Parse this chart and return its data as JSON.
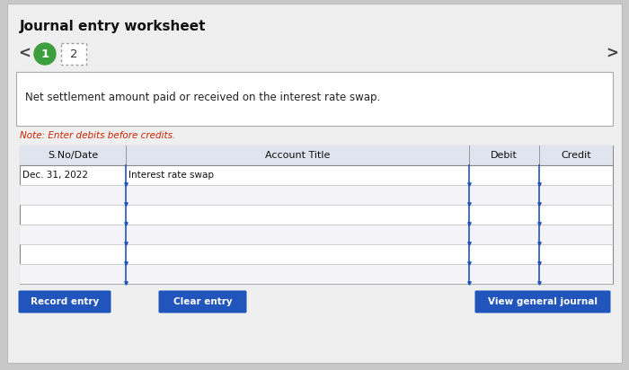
{
  "title": "Journal entry worksheet",
  "bg_color": "#c8c8c8",
  "card_color": "#efefef",
  "white": "#ffffff",
  "nav_left": "<",
  "nav_right": ">",
  "tab1_label": "1",
  "tab1_color": "#3d9e3d",
  "tab2_label": "2",
  "hint_text": "Net settlement amount paid or received on the interest rate swap.",
  "note_text": "Note: Enter debits before credits.",
  "note_color": "#cc2200",
  "col_headers": [
    "S.No/Date",
    "Account Title",
    "Debit",
    "Credit"
  ],
  "row1_date": "Dec. 31, 2022",
  "row1_account": "Interest rate swap",
  "num_rows": 6,
  "btn_color": "#2255bb",
  "btn_text_color": "#ffffff",
  "btn1_label": "Record entry",
  "btn2_label": "Clear entry",
  "btn3_label": "View general journal",
  "table_header_bg": "#e0e4ee",
  "table_line_color": "#2255bb",
  "border_color": "#bbbbbb",
  "table_row_alt": "#e8eaf2"
}
